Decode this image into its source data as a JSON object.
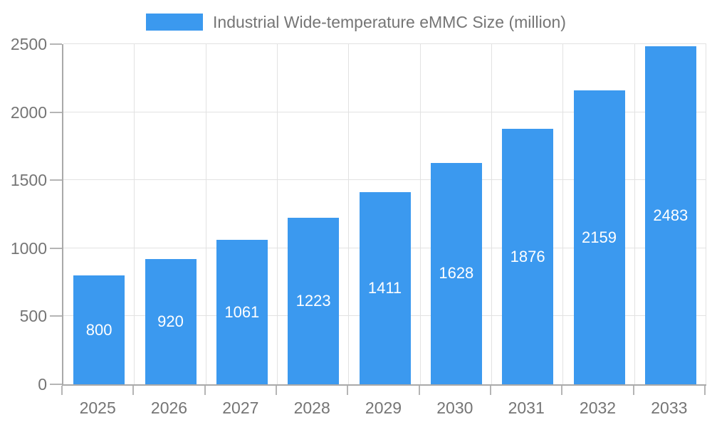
{
  "chart_data": {
    "type": "bar",
    "title": "Industrial Wide-temperature eMMC Size (million)",
    "legend": [
      "Industrial Wide-temperature eMMC Size (million)"
    ],
    "legend_position": "top",
    "categories": [
      "2025",
      "2026",
      "2027",
      "2028",
      "2029",
      "2030",
      "2031",
      "2032",
      "2033"
    ],
    "values": [
      800,
      920,
      1061,
      1223,
      1411,
      1628,
      1876,
      2159,
      2483
    ],
    "value_labels_shown": true,
    "xlabel": "",
    "ylabel": "",
    "ylim": [
      0,
      2500
    ],
    "yticks": [
      0,
      500,
      1000,
      1500,
      2000,
      2500
    ],
    "grid": true,
    "colors": {
      "bar": "#3b99ef",
      "bar_value_text": "#ffffff",
      "axis_text": "#757575",
      "gridline": "#e2e2e2",
      "axis_line": "#a9a9a9",
      "tick_mark": "#b5b5b5",
      "background": "#ffffff"
    }
  }
}
